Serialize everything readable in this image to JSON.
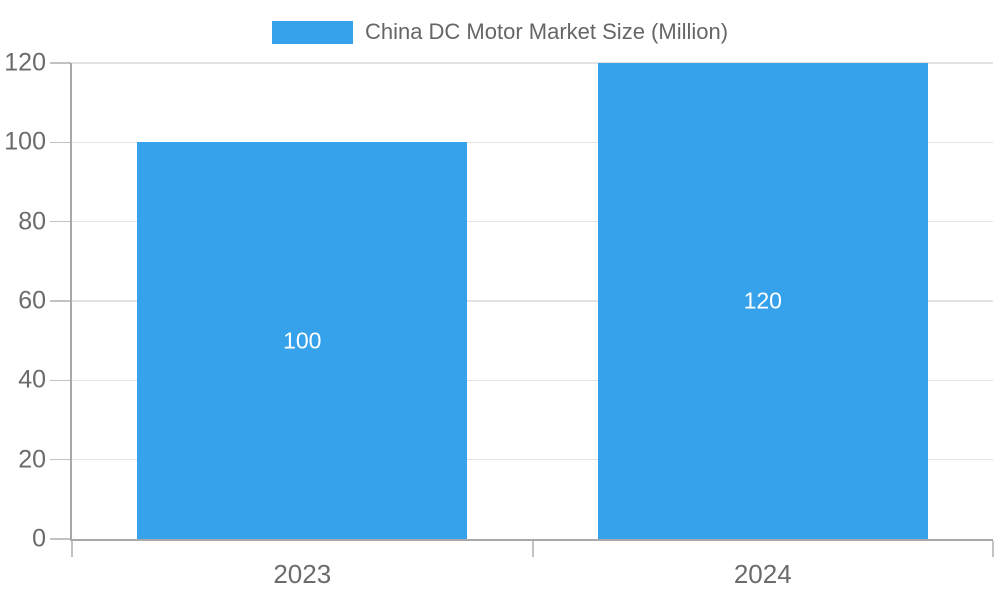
{
  "chart_data": {
    "type": "bar",
    "title": "China DC Motor Market Size (Million)",
    "categories": [
      "2023",
      "2024"
    ],
    "series": [
      {
        "name": "China DC Motor Market Size (Million)",
        "values": [
          100,
          120
        ]
      }
    ],
    "value_labels": [
      "100",
      "120"
    ],
    "xlabel": "",
    "ylabel": "",
    "ylim": [
      0,
      120
    ],
    "y_ticks": [
      0,
      20,
      40,
      60,
      80,
      100,
      120
    ],
    "grid": "horizontal",
    "legend_position": "top-center",
    "colors": {
      "bar": "#36A2EB",
      "grid_line": "#e3e3e3",
      "axis_line": "#a8a8a8",
      "tick_mark": "#c2c2c2",
      "axis_text": "#6b6b6b",
      "legend_text": "#666666",
      "value_text": "#ffffff",
      "background": "#ffffff"
    }
  }
}
